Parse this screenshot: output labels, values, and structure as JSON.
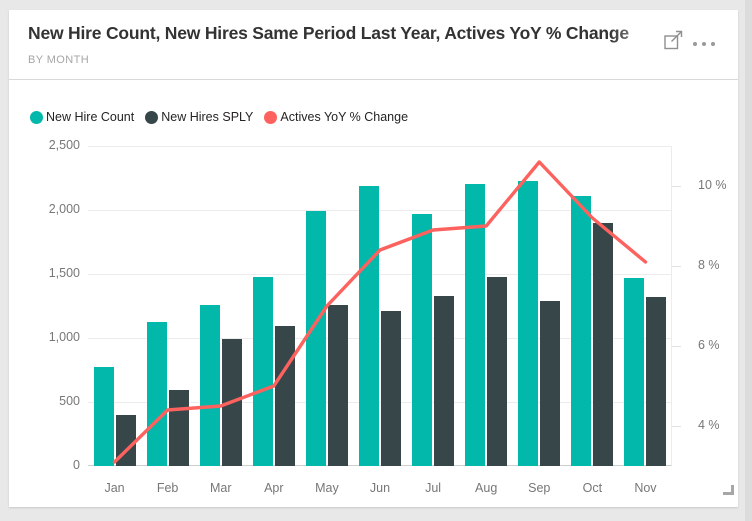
{
  "card": {
    "title": "New Hire Count, New Hires Same Period Last Year, Actives YoY % Change",
    "subtitle": "BY MONTH",
    "icons": [
      {
        "name": "focus-mode-icon"
      },
      {
        "name": "more-options-icon"
      },
      {
        "name": "resize-handle-icon"
      }
    ]
  },
  "chart_data": {
    "type": "combo",
    "title": "New Hire Count, New Hires Same Period Last Year, Actives YoY % Change by Month",
    "categories": [
      "Jan",
      "Feb",
      "Mar",
      "Apr",
      "May",
      "Jun",
      "Jul",
      "Aug",
      "Sep",
      "Oct",
      "Nov"
    ],
    "series": [
      {
        "name": "New Hire Count",
        "type": "bar",
        "axis": "left",
        "color": "#01B8AA",
        "values": [
          775,
          1125,
          1260,
          1480,
          1995,
          2190,
          1970,
          2200,
          2225,
          2110,
          1470
        ]
      },
      {
        "name": "New Hires SPLY",
        "type": "bar",
        "axis": "left",
        "color": "#374649",
        "values": [
          400,
          590,
          990,
          1090,
          1255,
          1210,
          1325,
          1475,
          1290,
          1895,
          1320
        ]
      },
      {
        "name": "Actives YoY % Change",
        "type": "line",
        "axis": "right",
        "color": "#FD625E",
        "values": [
          3.1,
          4.4,
          4.5,
          5.0,
          7.0,
          8.4,
          8.9,
          9.0,
          10.6,
          9.2,
          8.1
        ]
      }
    ],
    "left_axis": {
      "min": 0,
      "max": 2500,
      "ticks": [
        0,
        500,
        1000,
        1500,
        2000,
        2500
      ]
    },
    "right_axis": {
      "min": 3,
      "max": 11,
      "ticks": [
        4,
        6,
        8,
        10
      ],
      "suffix": " %"
    },
    "legend_position": "top",
    "grid": true
  }
}
